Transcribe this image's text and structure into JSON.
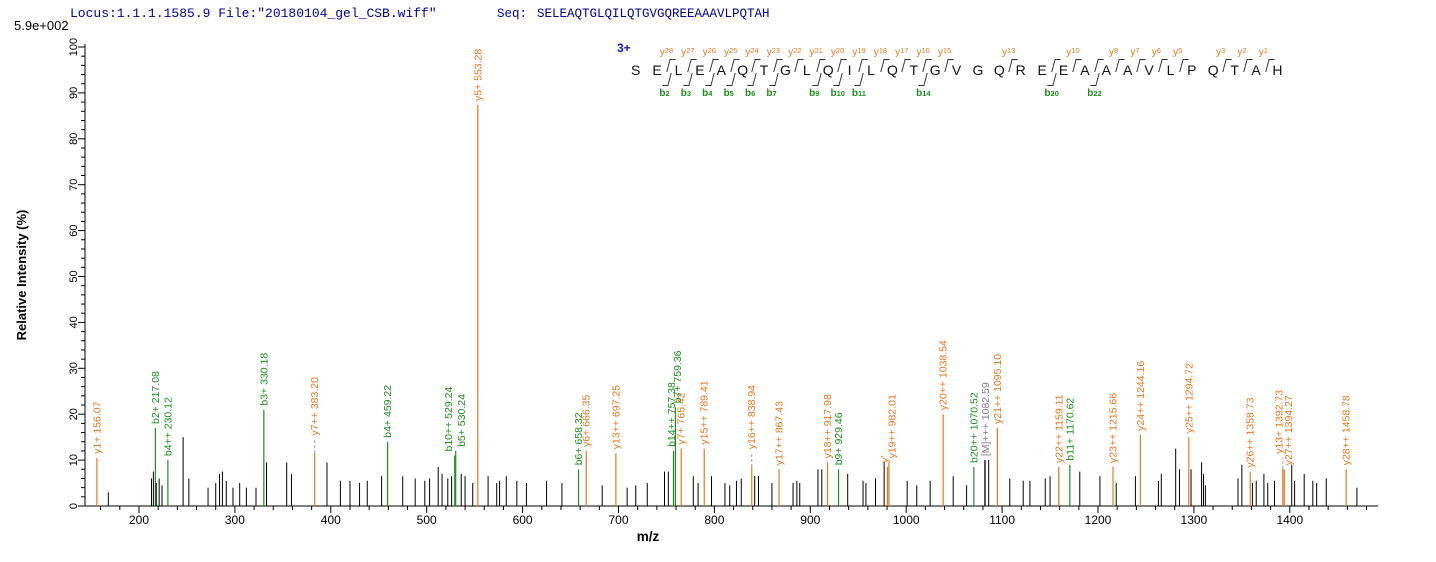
{
  "header": {
    "locus_file": "Locus:1.1.1.1585.9 File:\"20180104_gel_CSB.wiff\"",
    "seq_label": "Seq:",
    "seq_value": "SELEAQTGLQILQTGVGQREEAAAVLPQTAH",
    "max_intensity": "5.9e+002",
    "charge_label": "3+"
  },
  "sequence": {
    "residues": [
      {
        "aa": "S"
      },
      {
        "aa": "E",
        "b": "b2"
      },
      {
        "aa": "L",
        "y": "y28",
        "b": "b3"
      },
      {
        "aa": "E",
        "y": "y27",
        "b": "b4"
      },
      {
        "aa": "A",
        "y": "y26",
        "b": "b5"
      },
      {
        "aa": "Q",
        "y": "y25",
        "b": "b6"
      },
      {
        "aa": "T",
        "y": "y24",
        "b": "b7"
      },
      {
        "aa": "G",
        "y": "y23"
      },
      {
        "aa": "L",
        "y": "y22",
        "b": "b9"
      },
      {
        "aa": "Q",
        "y": "y21",
        "b": "b10"
      },
      {
        "aa": "I",
        "y": "y20",
        "b": "b11"
      },
      {
        "aa": "L",
        "y": "y19"
      },
      {
        "aa": "Q",
        "y": "y18"
      },
      {
        "aa": "T",
        "y": "y17",
        "b": "b14"
      },
      {
        "aa": "G",
        "y": "y16"
      },
      {
        "aa": "V",
        "y": "y15"
      },
      {
        "aa": "G"
      },
      {
        "aa": "Q"
      },
      {
        "aa": "R",
        "y": "y13"
      },
      {
        "aa": "E",
        "b": "b20"
      },
      {
        "aa": "E",
        "ym": true
      },
      {
        "aa": "A",
        "y": "y10",
        "b": "b22"
      },
      {
        "aa": "A",
        "ym": true
      },
      {
        "aa": "A",
        "y": "y8"
      },
      {
        "aa": "V",
        "y": "y7"
      },
      {
        "aa": "L",
        "y": "y6"
      },
      {
        "aa": "P",
        "y": "y5"
      },
      {
        "aa": "Q"
      },
      {
        "aa": "T",
        "y": "y3"
      },
      {
        "aa": "A",
        "y": "y2"
      },
      {
        "aa": "H",
        "y": "y1"
      }
    ]
  },
  "chart_data": {
    "type": "bar",
    "subtype": "ms2-fragment-spectrum",
    "title": "",
    "xlabel": "m/z",
    "ylabel": "Relative  Intensity (%)",
    "xlim": [
      143,
      1493
    ],
    "ylim": [
      0,
      100
    ],
    "x_major_tick_start": 200,
    "x_major_tick_end": 1400,
    "x_major_step": 100,
    "x_minor_step": 20,
    "y_major_step": 10,
    "y_minor_step": 2,
    "grid": false,
    "max_intensity_label": "5.9e+002",
    "colors": {
      "y_ion": "#E8781E",
      "b_ion": "#1E8E1E",
      "precursor": "#808080",
      "unassigned": "#000000"
    },
    "series": [
      {
        "name": "y-ions",
        "color": "#E8781E",
        "peaks": [
          {
            "label": "y1+ 156.07",
            "mz": 156.07,
            "intensity": 10.5
          },
          {
            "label": "y7++ 383.20",
            "mz": 383.2,
            "intensity": 11.5,
            "label_at": 14.5
          },
          {
            "label": "y5+ 553.28",
            "mz": 553.28,
            "intensity": 100
          },
          {
            "label": "y6+ 666.35",
            "mz": 666.35,
            "intensity": 12
          },
          {
            "label": "y13++ 697.25",
            "mz": 697.25,
            "intensity": 11.5
          },
          {
            "label": "y7+ 765.42",
            "mz": 765.42,
            "intensity": 12.5
          },
          {
            "label": "y15++ 789.41",
            "mz": 789.41,
            "intensity": 12.5
          },
          {
            "label": "y16++ 838.94",
            "mz": 838.94,
            "intensity": 8.5,
            "label_at": 11.5
          },
          {
            "label": "y17++ 867.43",
            "mz": 867.43,
            "intensity": 8
          },
          {
            "label": "y18++ 917.98",
            "mz": 917.98,
            "intensity": 9.5
          },
          {
            "label": "y'",
            "mz": 980.5,
            "intensity": 8.5,
            "dx": -3
          },
          {
            "label": "y19++ 982.01",
            "mz": 982.01,
            "intensity": 9.5,
            "dx": 3
          },
          {
            "label": "y20++ 1038.54",
            "mz": 1038.54,
            "intensity": 20
          },
          {
            "label": "y21++ 1095.10",
            "mz": 1095.1,
            "intensity": 17
          },
          {
            "label": "y22++ 1159.11",
            "mz": 1159.11,
            "intensity": 8.5
          },
          {
            "label": "y23++ 1215.66",
            "mz": 1215.66,
            "intensity": 8.5
          },
          {
            "label": "y24++ 1244.16",
            "mz": 1244.16,
            "intensity": 15.5
          },
          {
            "label": "y25++ 1294.72",
            "mz": 1294.72,
            "intensity": 15
          },
          {
            "label": "y26++ 1358.73",
            "mz": 1358.73,
            "intensity": 7.5
          },
          {
            "label": "y13+ 1392.73",
            "mz": 1392.73,
            "intensity": 8,
            "dx": -4,
            "label_at": 10.5
          },
          {
            "label": "y27++ 1394.27",
            "mz": 1394.27,
            "intensity": 8,
            "dx": 4
          },
          {
            "label": "y28++ 1458.78",
            "mz": 1458.78,
            "intensity": 8
          }
        ]
      },
      {
        "name": "b-ions",
        "color": "#1E8E1E",
        "peaks": [
          {
            "label": "b2+ 217.08",
            "mz": 217.08,
            "intensity": 17
          },
          {
            "label": "b4++ 230.12",
            "mz": 230.12,
            "intensity": 10
          },
          {
            "label": "b3+ 330.18",
            "mz": 330.18,
            "intensity": 21
          },
          {
            "label": "b4+ 459.22",
            "mz": 459.22,
            "intensity": 14
          },
          {
            "label": "b10++ 529.24",
            "mz": 529.24,
            "intensity": 11,
            "dx": -6
          },
          {
            "label": "b5+ 530.24",
            "mz": 530.24,
            "intensity": 12,
            "dx": 6
          },
          {
            "label": "b6+ 658.32",
            "mz": 658.32,
            "intensity": 8
          },
          {
            "label": "b14++ 757.38",
            "mz": 757.38,
            "intensity": 12,
            "dx": -2
          },
          {
            "label": "b7+ 759.36",
            "mz": 759.36,
            "intensity": 21.5,
            "dx": 2
          },
          {
            "label": "b9+ 929.46",
            "mz": 929.46,
            "intensity": 8
          },
          {
            "label": "b20++ 1070.52",
            "mz": 1070.52,
            "intensity": 8.5
          },
          {
            "label": "b11+ 1170.62",
            "mz": 1170.62,
            "intensity": 9
          }
        ]
      },
      {
        "name": "precursor",
        "color": "#808080",
        "peaks": [
          {
            "label": "[M]+++ 1082.59",
            "mz": 1082.59,
            "intensity": 10
          }
        ]
      },
      {
        "name": "unassigned",
        "color": "#000000",
        "peaks": [
          [
            168,
            3
          ],
          [
            213,
            6
          ],
          [
            215,
            7.5
          ],
          [
            218,
            5
          ],
          [
            221,
            6
          ],
          [
            224,
            4.5
          ],
          [
            246,
            15
          ],
          [
            252,
            6
          ],
          [
            272,
            4
          ],
          [
            280,
            5
          ],
          [
            284,
            7
          ],
          [
            287,
            7.5
          ],
          [
            291,
            5.5
          ],
          [
            298,
            4
          ],
          [
            305,
            5
          ],
          [
            312,
            4
          ],
          [
            322,
            4
          ],
          [
            333,
            9.5
          ],
          [
            354,
            9.5
          ],
          [
            359,
            7
          ],
          [
            396,
            9.5
          ],
          [
            410,
            5.5
          ],
          [
            420,
            5.5
          ],
          [
            430,
            5
          ],
          [
            438,
            5.5
          ],
          [
            453,
            6.5
          ],
          [
            475,
            6.5
          ],
          [
            488,
            6
          ],
          [
            498,
            5.5
          ],
          [
            503,
            6
          ],
          [
            512,
            8.5
          ],
          [
            516,
            7
          ],
          [
            522,
            6
          ],
          [
            526,
            6.5
          ],
          [
            536,
            7
          ],
          [
            540,
            6.5
          ],
          [
            548,
            5
          ],
          [
            564,
            6.5
          ],
          [
            573,
            5
          ],
          [
            576,
            5.5
          ],
          [
            583,
            6.5
          ],
          [
            594,
            5.5
          ],
          [
            604,
            5
          ],
          [
            625,
            5.5
          ],
          [
            641,
            5
          ],
          [
            683,
            4.5
          ],
          [
            709,
            4
          ],
          [
            718,
            4.5
          ],
          [
            730,
            5
          ],
          [
            748,
            7.5
          ],
          [
            752,
            7.5
          ],
          [
            778,
            6.5
          ],
          [
            783,
            5
          ],
          [
            797,
            6.5
          ],
          [
            811,
            5
          ],
          [
            816,
            4.5
          ],
          [
            823,
            5.5
          ],
          [
            828,
            6
          ],
          [
            842,
            6.5
          ],
          [
            846,
            6.5
          ],
          [
            860,
            5
          ],
          [
            882,
            5
          ],
          [
            886,
            5.5
          ],
          [
            889,
            5
          ],
          [
            908,
            8
          ],
          [
            912,
            8
          ],
          [
            939,
            7
          ],
          [
            955,
            5.5
          ],
          [
            958,
            5
          ],
          [
            968,
            6
          ],
          [
            977,
            9.5
          ],
          [
            1001,
            5.5
          ],
          [
            1011,
            4.5
          ],
          [
            1025,
            5.5
          ],
          [
            1049,
            6.5
          ],
          [
            1063,
            4.5
          ],
          [
            1082,
            10
          ],
          [
            1086,
            10
          ],
          [
            1108,
            6
          ],
          [
            1122,
            5.5
          ],
          [
            1129,
            5.5
          ],
          [
            1145,
            6
          ],
          [
            1150,
            6.5
          ],
          [
            1181,
            7.5
          ],
          [
            1202,
            6.5
          ],
          [
            1219,
            5
          ],
          [
            1239,
            6.5
          ],
          [
            1263,
            5.5
          ],
          [
            1266,
            7
          ],
          [
            1281,
            12.5
          ],
          [
            1285,
            8
          ],
          [
            1297,
            8
          ],
          [
            1308,
            9.5
          ],
          [
            1310,
            7
          ],
          [
            1312,
            4.5
          ],
          [
            1346,
            6
          ],
          [
            1350,
            9
          ],
          [
            1361,
            5
          ],
          [
            1365,
            5.5
          ],
          [
            1373,
            7
          ],
          [
            1377,
            5
          ],
          [
            1384,
            5.5
          ],
          [
            1402,
            9
          ],
          [
            1405,
            5.5
          ],
          [
            1415,
            7
          ],
          [
            1424,
            5.5
          ],
          [
            1428,
            5
          ],
          [
            1438,
            6
          ],
          [
            1470,
            4
          ]
        ]
      }
    ]
  }
}
